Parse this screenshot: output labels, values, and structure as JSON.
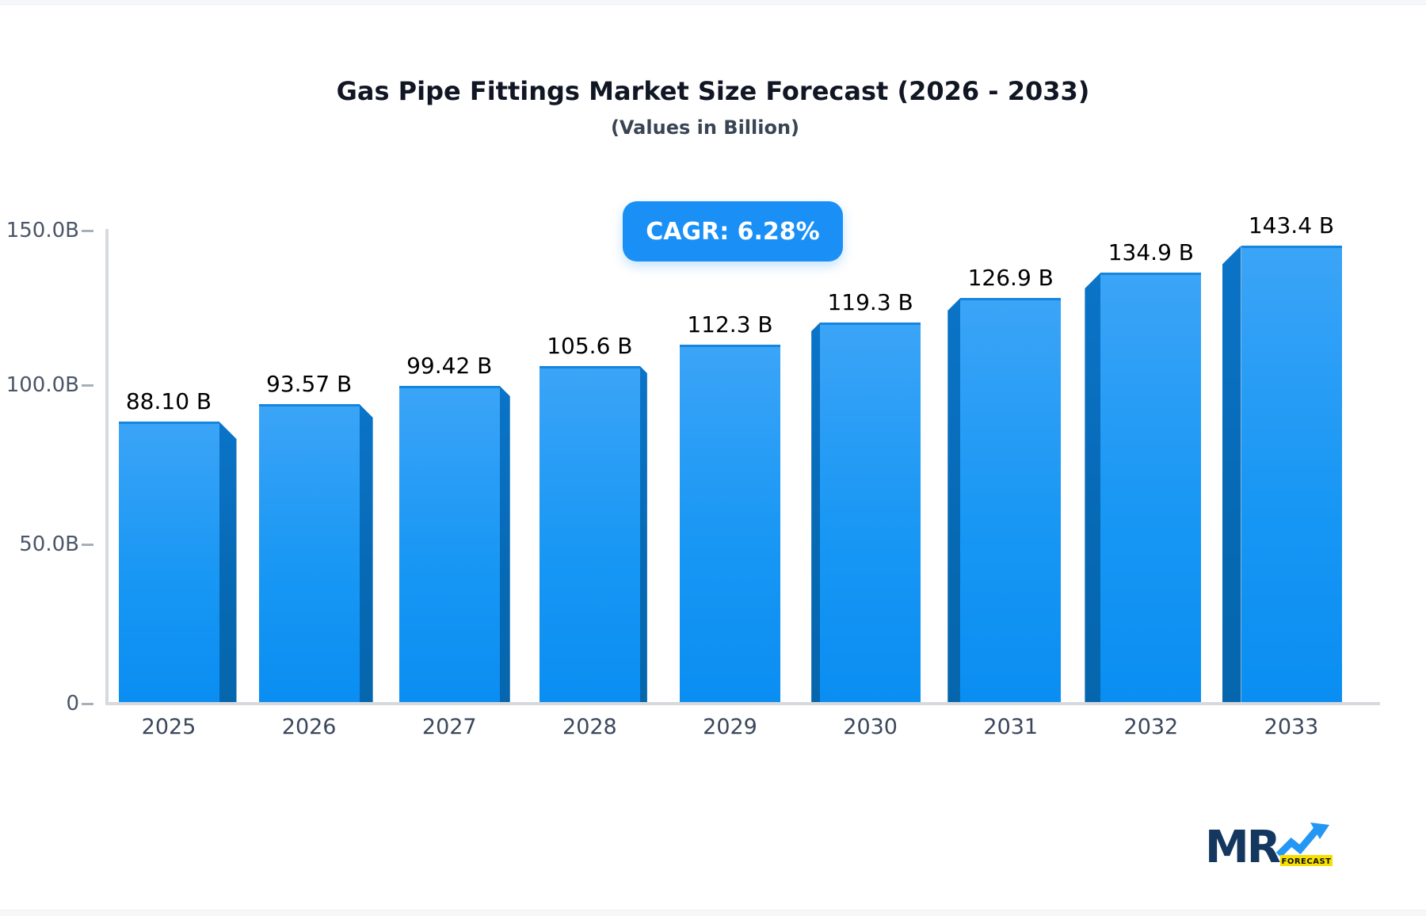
{
  "header": {
    "title": "Gas Pipe Fittings Market Size Forecast (2026 - 2033)",
    "subtitle": "(Values in Billion)",
    "cagr_badge": "CAGR: 6.28%"
  },
  "chart_data": {
    "type": "bar",
    "title": "Gas Pipe Fittings Market Size Forecast (2026 - 2033)",
    "subtitle": "(Values in Billion)",
    "unit": "Billion",
    "cagr_percent": 6.28,
    "categories": [
      "2025",
      "2026",
      "2027",
      "2028",
      "2029",
      "2030",
      "2031",
      "2032",
      "2033"
    ],
    "values": [
      88.1,
      93.57,
      99.42,
      105.6,
      112.3,
      119.3,
      126.9,
      134.9,
      143.4
    ],
    "bar_labels": [
      "88.10 B",
      "93.57 B",
      "99.42 B",
      "105.6 B",
      "112.3 B",
      "119.3 B",
      "126.9 B",
      "134.9 B",
      "143.4 B"
    ],
    "y_ticks": [
      "150.0B",
      "100.0B",
      "50.0B",
      "0"
    ],
    "ylim": [
      0,
      150
    ],
    "xlabel": "",
    "ylabel": "",
    "grid": false,
    "legend": "none",
    "colors": {
      "bar_face_top": "#3ba4f7",
      "bar_face_bottom": "#0a8ef2",
      "bar_side": "#0b74c8",
      "badge_background": "#1a90f6",
      "axis_line": "#d6d9de",
      "label_text": "#000000",
      "axis_text": "#4a5568"
    }
  },
  "logo": {
    "mr": "MR",
    "forecast": "FORECAST"
  }
}
